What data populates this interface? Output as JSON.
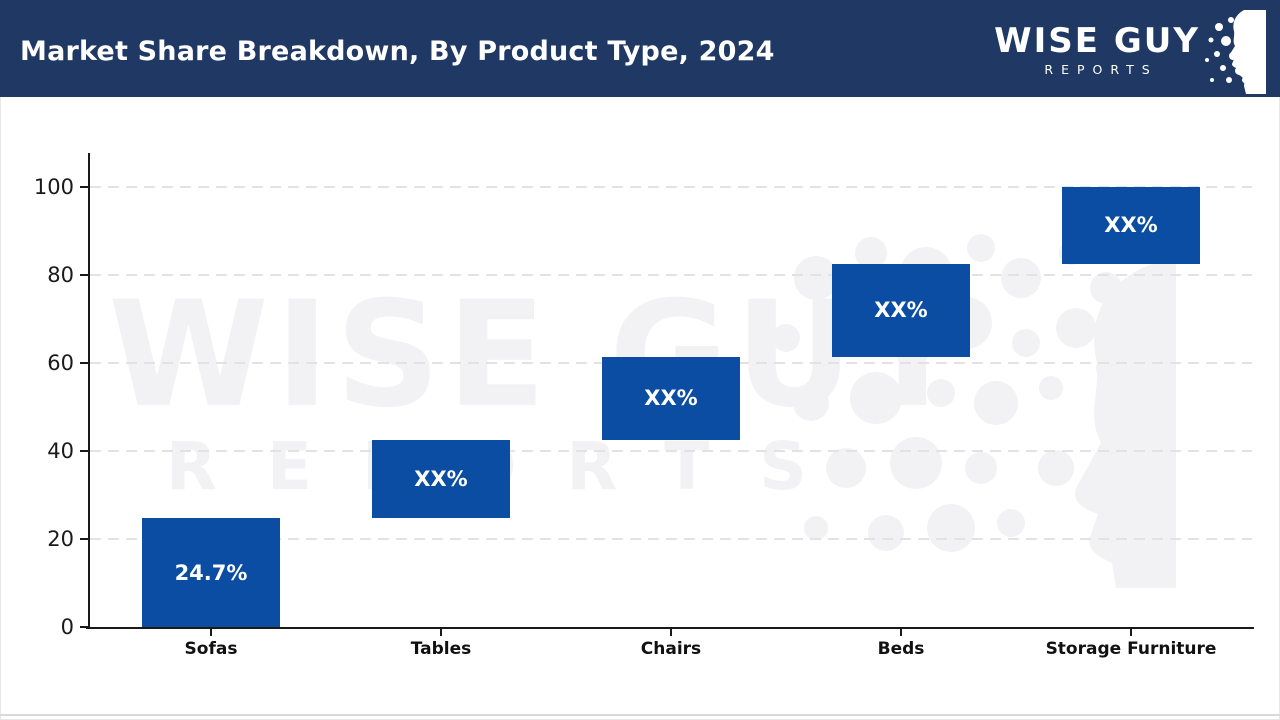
{
  "header": {
    "title": "Market Share Breakdown, By Product Type, 2024",
    "logo": {
      "line1": "WISE GUY",
      "line2": "REPORTS"
    }
  },
  "watermark": {
    "line1": "WISE GUY",
    "line2": "REPORTS"
  },
  "colors": {
    "header_bg": "#1F3864",
    "bar": "#0B4DA2",
    "grid": "#e2e2e2",
    "axis": "#1a1a1a",
    "watermark": "#f2f2f5",
    "bar_label": "#ffffff"
  },
  "chart_data": {
    "type": "bar",
    "subtype": "waterfall",
    "title": "Market Share Breakdown, By Product Type, 2024",
    "xlabel": "",
    "ylabel": "",
    "ylim": [
      0,
      107
    ],
    "yticks": [
      0,
      20,
      40,
      60,
      80,
      100
    ],
    "grid": "horizontal dashed",
    "legend": "none",
    "bar_color": "#0B4DA2",
    "categories": [
      "Sofas",
      "Tables",
      "Chairs",
      "Beds",
      "Storage Furniture"
    ],
    "bars": [
      {
        "category": "Sofas",
        "start": 0,
        "end": 24.7,
        "label": "24.7%"
      },
      {
        "category": "Tables",
        "start": 24.7,
        "end": 42.5,
        "label": "XX%"
      },
      {
        "category": "Chairs",
        "start": 42.5,
        "end": 61.4,
        "label": "XX%"
      },
      {
        "category": "Beds",
        "start": 61.4,
        "end": 82.6,
        "label": "XX%"
      },
      {
        "category": "Storage Furniture",
        "start": 82.6,
        "end": 100,
        "label": "XX%"
      }
    ]
  }
}
